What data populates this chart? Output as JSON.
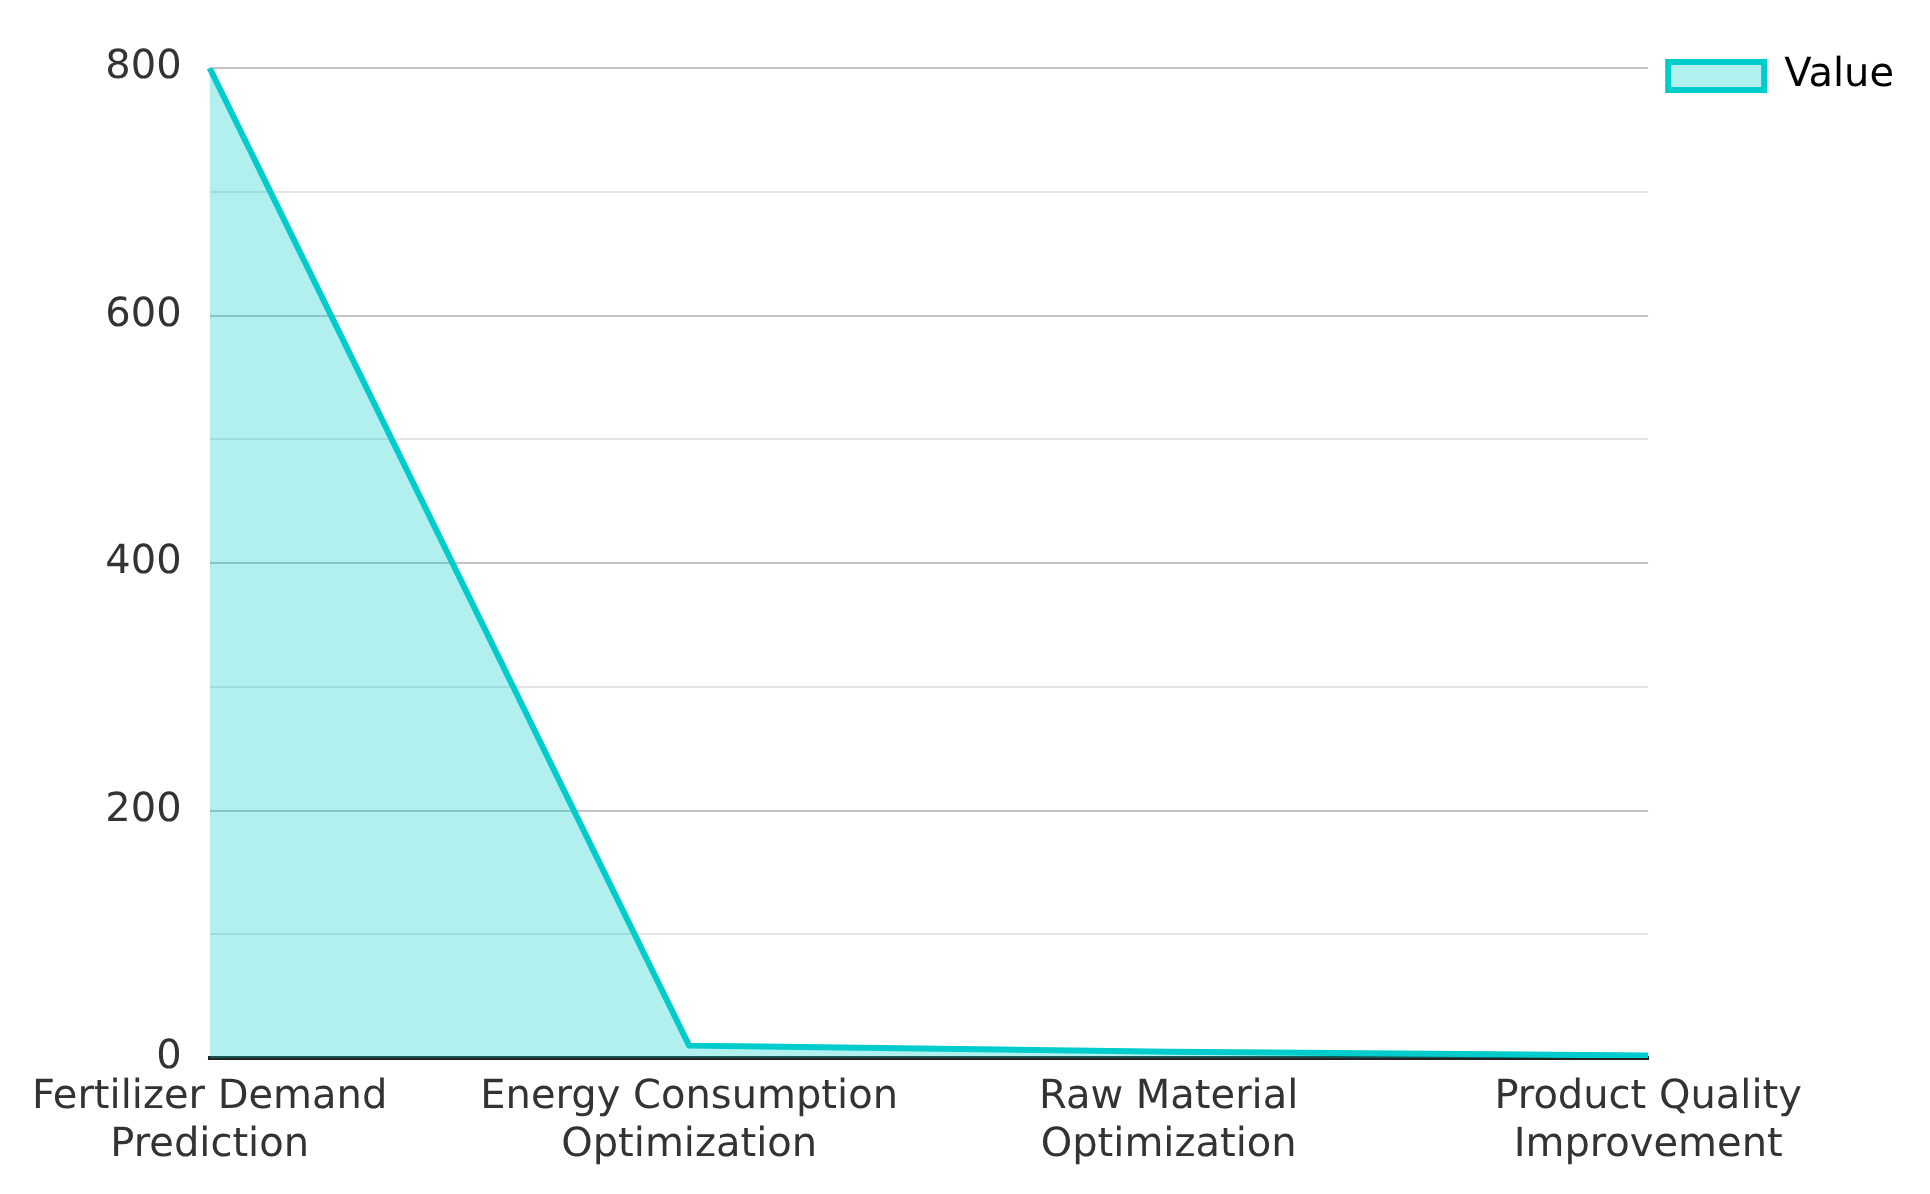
{
  "chart_data": {
    "type": "area",
    "categories": [
      "Fertilizer Demand Prediction",
      "Energy Consumption Optimization",
      "Raw Material Optimization",
      "Product Quality Improvement"
    ],
    "series": [
      {
        "name": "Value",
        "color": "#00cccc",
        "values": [
          800,
          10,
          5,
          2
        ]
      }
    ],
    "ylim": [
      0,
      800
    ],
    "yticks": [
      0,
      {
        "value": 100,
        "label": null
      },
      200,
      {
        "value": 300,
        "label": null
      },
      400,
      {
        "value": 500,
        "label": null
      },
      600,
      {
        "value": 700,
        "label": null
      },
      800
    ],
    "grid": "y",
    "legend": "top right"
  }
}
